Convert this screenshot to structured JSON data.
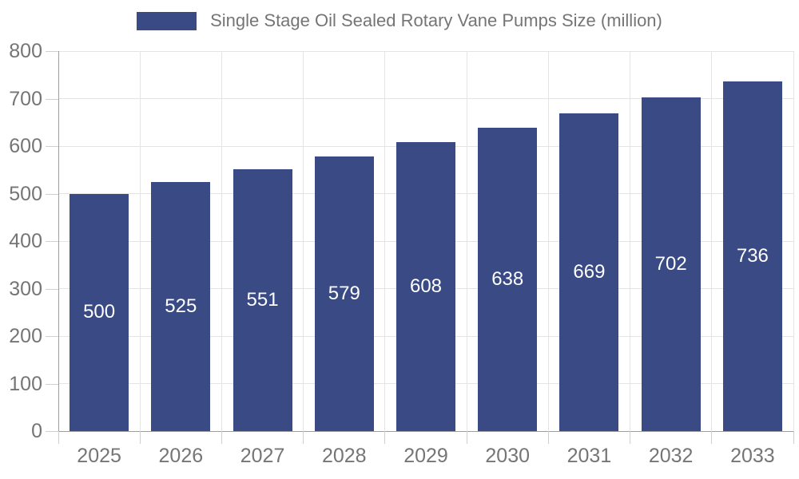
{
  "chart_data": {
    "type": "bar",
    "legend": "Single Stage Oil Sealed Rotary Vane Pumps Size (million)",
    "title": "",
    "xlabel": "",
    "ylabel": "",
    "categories": [
      "2025",
      "2026",
      "2027",
      "2028",
      "2029",
      "2030",
      "2031",
      "2032",
      "2033"
    ],
    "values": [
      500,
      525,
      551,
      579,
      608,
      638,
      669,
      702,
      736
    ],
    "ylim": [
      0,
      800
    ],
    "yticks": [
      0,
      100,
      200,
      300,
      400,
      500,
      600,
      700,
      800
    ],
    "grid": true,
    "legend_position": "top",
    "value_labels": "inside-center"
  },
  "colors": {
    "bar": "#3a4a84",
    "grid": "#e4e4e4",
    "axis": "#9e9e9e",
    "tick": "#cfcfcf",
    "axis_text": "#757575",
    "legend_text": "#757575",
    "value_text": "#ffffff",
    "background": "#ffffff"
  }
}
